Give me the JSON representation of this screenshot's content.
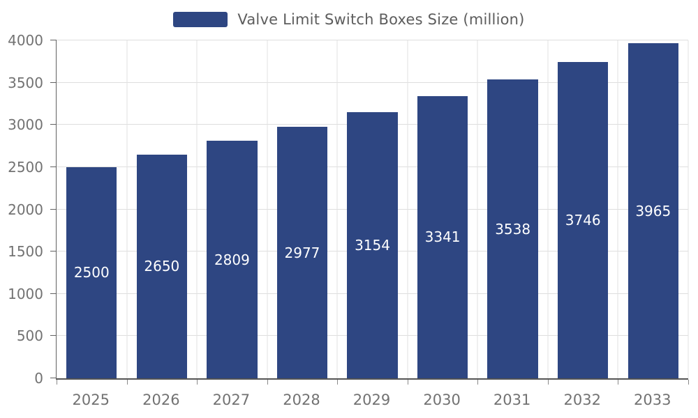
{
  "legend": {
    "label": "Valve Limit Switch Boxes Size (million)",
    "swatch_color": "#2E4682"
  },
  "chart_data": {
    "type": "bar",
    "title": "Valve Limit Switch Boxes Size (million)",
    "categories": [
      "2025",
      "2026",
      "2027",
      "2028",
      "2029",
      "2030",
      "2031",
      "2032",
      "2033"
    ],
    "values": [
      2500,
      2650,
      2809,
      2977,
      3154,
      3341,
      3538,
      3746,
      3965
    ],
    "series": [
      {
        "name": "Valve Limit Switch Boxes Size (million)",
        "values": [
          2500,
          2650,
          2809,
          2977,
          3154,
          3341,
          3538,
          3746,
          3965
        ]
      }
    ],
    "xlabel": "",
    "ylabel": "",
    "ylim": [
      0,
      4000
    ],
    "yticks": [
      0,
      500,
      1000,
      1500,
      2000,
      2500,
      3000,
      3500,
      4000
    ],
    "grid": true,
    "legend_position": "top",
    "bar_color": "#2E4682",
    "value_label_color": "#ffffff",
    "axis_label_color": "#727272",
    "gridline_color": "#dedede"
  }
}
